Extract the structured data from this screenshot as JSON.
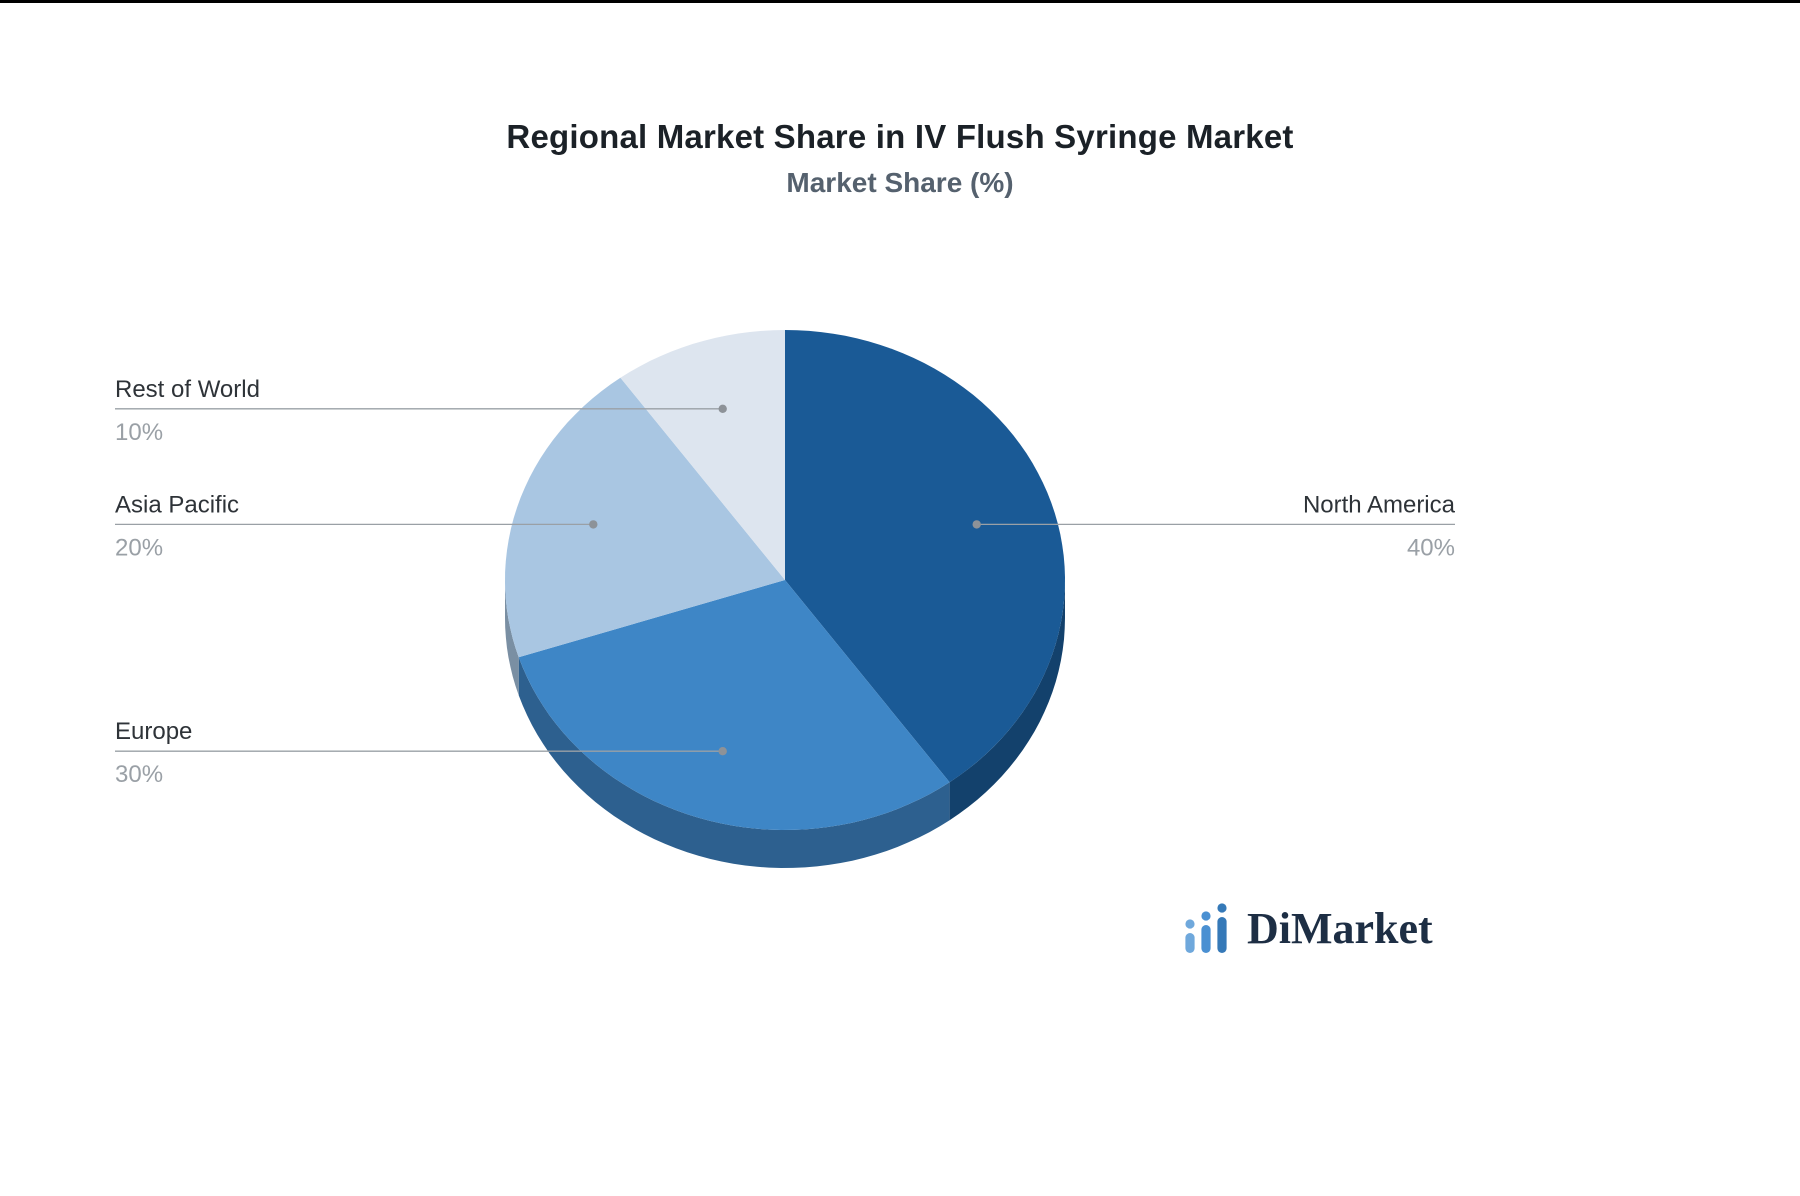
{
  "chart_data": {
    "type": "pie",
    "title": "Regional Market Share in IV Flush Syringe Market",
    "subtitle": "Market Share (%)",
    "unit": "%",
    "categories": [
      "North America",
      "Europe",
      "Asia Pacific",
      "Rest of World"
    ],
    "values": [
      40,
      30,
      20,
      10
    ],
    "slices": [
      {
        "name": "North America",
        "value": 40,
        "label": "40%",
        "color": "#1a5a96",
        "label_side": "right"
      },
      {
        "name": "Europe",
        "value": 30,
        "label": "30%",
        "color": "#3e86c6",
        "label_side": "left"
      },
      {
        "name": "Asia Pacific",
        "value": 20,
        "label": "20%",
        "color": "#a9c6e2",
        "label_side": "left"
      },
      {
        "name": "Rest of World",
        "value": 10,
        "label": "10%",
        "color": "#dde5ef",
        "label_side": "left"
      }
    ],
    "start_angle_deg": 0,
    "direction": "clockwise",
    "style": "3d",
    "legend": "none",
    "label_line_color": "#9aa0a6",
    "label_name_color": "#2e3338",
    "label_value_color": "#9aa0a6"
  },
  "branding": {
    "name": "DiMarket",
    "icon": "bar-chart-icon",
    "icon_color": "#4a90d2",
    "text_color": "#1d2e44"
  }
}
